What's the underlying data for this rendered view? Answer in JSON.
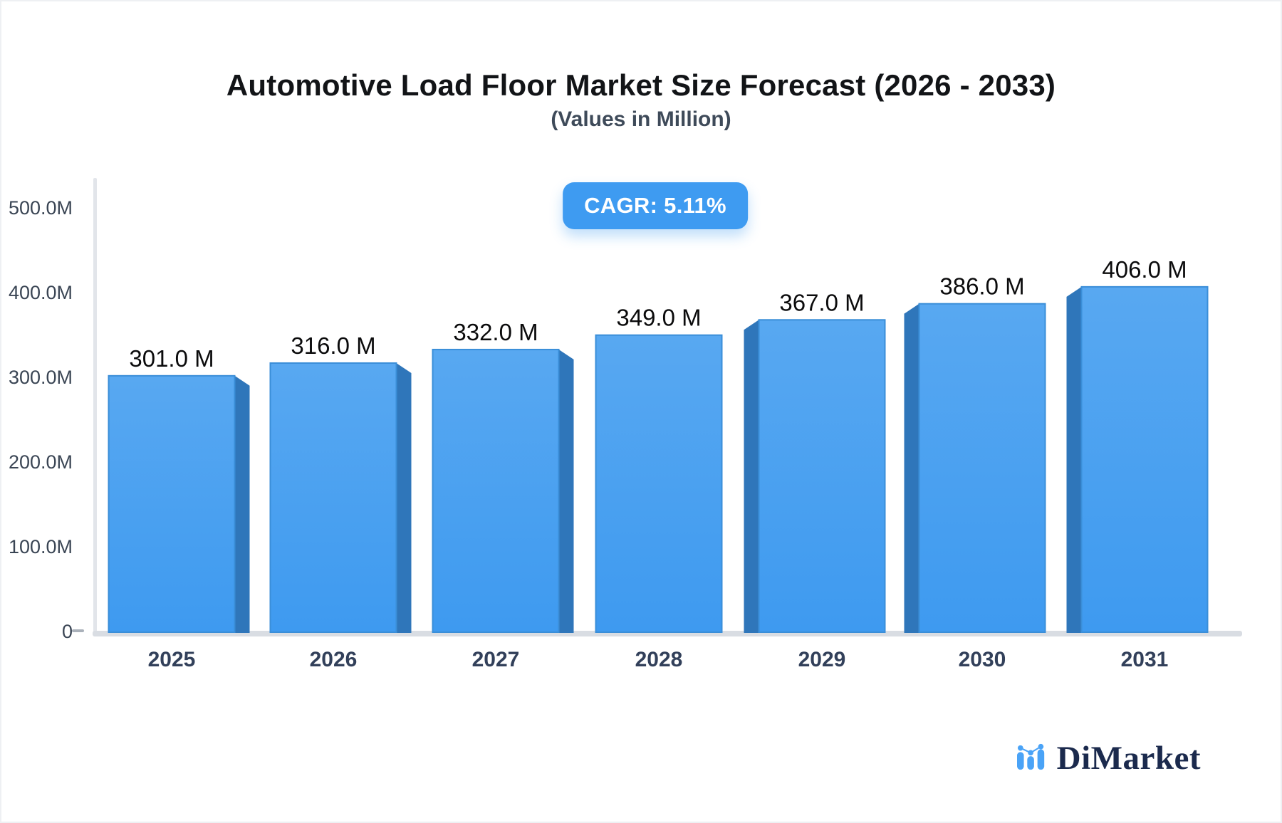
{
  "page": {
    "background": "#ffffff",
    "border_color": "#eef0f3"
  },
  "header": {
    "title": "Automotive Load Floor Market Size Forecast (2026 - 2033)",
    "subtitle": "(Values in Million)",
    "cagr_label": "CAGR: 5.11%",
    "cagr_badge_color": "#3e9bf1"
  },
  "chart_data": {
    "type": "bar",
    "title": "Automotive Load Floor Market Size Forecast (2026 - 2033)",
    "subtitle": "(Values in Million)",
    "cagr_percent": 5.11,
    "unit": "Million",
    "categories": [
      "2025",
      "2026",
      "2027",
      "2028",
      "2029",
      "2030",
      "2031"
    ],
    "values": [
      301.0,
      316.0,
      332.0,
      349.0,
      367.0,
      386.0,
      406.0
    ],
    "value_labels": [
      "301.0 M",
      "316.0 M",
      "332.0 M",
      "349.0 M",
      "367.0 M",
      "386.0 M",
      "406.0 M"
    ],
    "xlabel": "",
    "ylabel": "",
    "ylim": [
      0,
      500
    ],
    "y_ticks": [
      {
        "value": 0,
        "label": "0"
      },
      {
        "value": 100,
        "label": "100.0M"
      },
      {
        "value": 200,
        "label": "200.0M"
      },
      {
        "value": 300,
        "label": "300.0M"
      },
      {
        "value": 400,
        "label": "400.0M"
      },
      {
        "value": 500,
        "label": "500.0M"
      }
    ],
    "grid": false,
    "legend": false,
    "bar_style": "3d-perspective-center",
    "colors": {
      "bar_top": "#58a8f1",
      "bar_bottom": "#3e9af0",
      "bar_side": "#2f76ba",
      "bar_border": "#3a8ed8",
      "axis_line": "#e2e5ea",
      "baseline": "#d9dde3",
      "tick": "#aab1ba",
      "value_label": "#0b0b0c",
      "year_label": "#32405a",
      "y_label": "#3a4554"
    }
  },
  "footer": {
    "brand": "DiMarket",
    "logo_icon": "bar-line-chart-icon",
    "logo_color": "#4aa3f7",
    "brand_color": "#1b2a4d"
  }
}
